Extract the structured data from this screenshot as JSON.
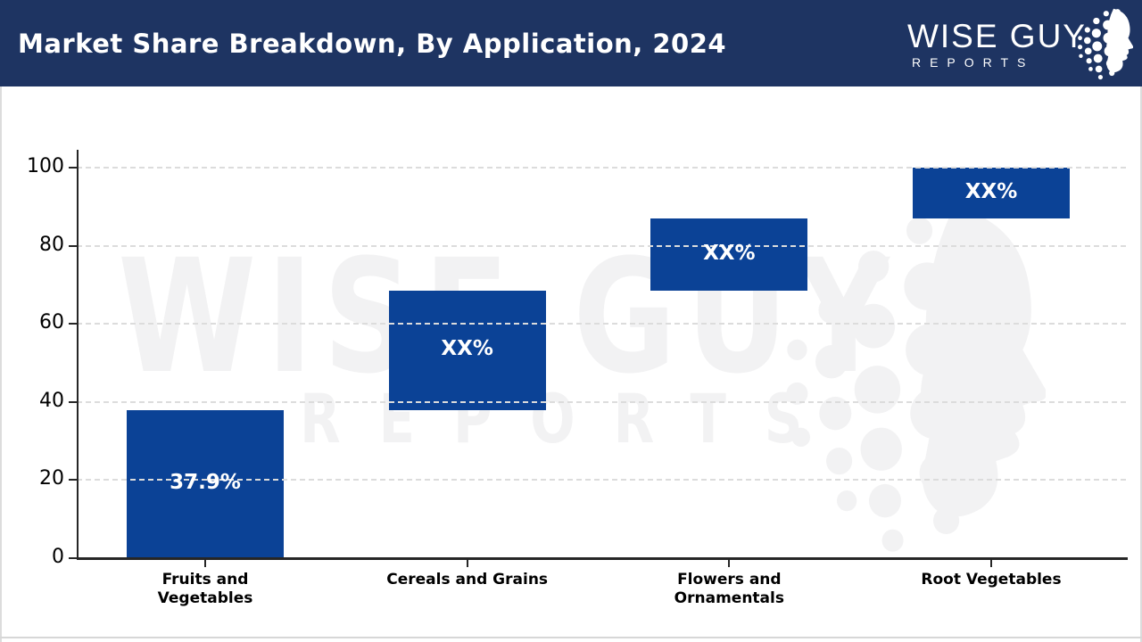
{
  "header": {
    "title": "Market Share Breakdown, By Application, 2024",
    "logo": {
      "line1": "WISE GUY",
      "line2": "REPORTS"
    }
  },
  "watermark": {
    "line1": "WISE GUY",
    "line2": "REPORTS"
  },
  "colors": {
    "header_bg": "#1e3462",
    "bar_blue": "#0b4296",
    "watermark_gray": "#f2f2f3",
    "gridline_gray": "#dcdcdc",
    "axis_dark": "#262626"
  },
  "chart_data": {
    "type": "bar",
    "subtype": "waterfall",
    "title": "Market Share Breakdown, By Application, 2024",
    "categories": [
      "Fruits and\nVegetables",
      "Cereals and Grains",
      "Flowers and\nOrnamentals",
      "Root Vegetables"
    ],
    "segments": [
      {
        "category": "Fruits and Vegetables",
        "start": 0,
        "end": 37.9,
        "label": "37.9%"
      },
      {
        "category": "Cereals and Grains",
        "start": 37.9,
        "end": 68.4,
        "label": "XX%"
      },
      {
        "category": "Flowers and Ornamentals",
        "start": 68.4,
        "end": 86.9,
        "label": "XX%"
      },
      {
        "category": "Root Vegetables",
        "start": 86.9,
        "end": 100,
        "label": "XX%"
      }
    ],
    "yticks": [
      0,
      20,
      40,
      60,
      80,
      100
    ],
    "ylim": [
      0,
      100
    ],
    "xlabel": "",
    "ylabel": "",
    "grid": "dashed-horizontal",
    "legend": "none",
    "bar_color": "#0b4296",
    "label_color": "#ffffff"
  }
}
